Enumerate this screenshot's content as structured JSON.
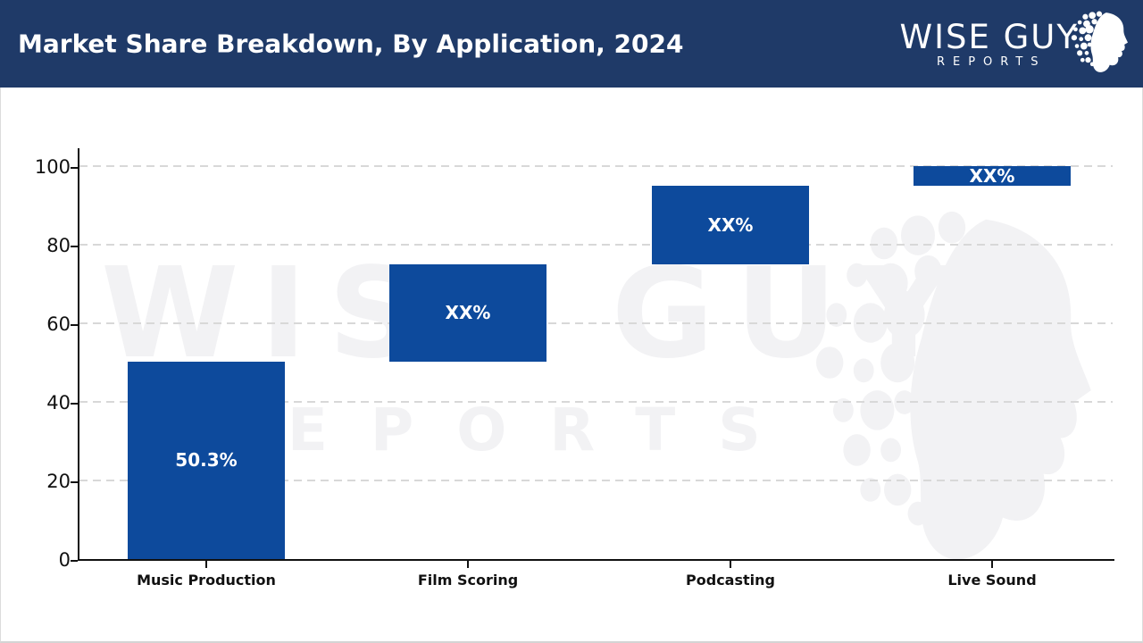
{
  "header": {
    "title": "Market Share Breakdown, By Application, 2024",
    "bg_color": "#1f3a68",
    "logo": {
      "line1": "WISE GUY",
      "line2": "REPORTS"
    }
  },
  "watermark": {
    "line1": "WISE GUY",
    "line2": "REPORTS"
  },
  "chart_data": {
    "type": "bar",
    "subtype": "waterfall",
    "title": "Market Share Breakdown, By Application, 2024",
    "categories": [
      "Music Production",
      "Film Scoring",
      "Podcasting",
      "Live Sound"
    ],
    "segments": [
      {
        "category": "Music Production",
        "start": 0,
        "end": 50.3,
        "label": "50.3%"
      },
      {
        "category": "Film Scoring",
        "start": 50.3,
        "end": 75,
        "label": "XX%"
      },
      {
        "category": "Podcasting",
        "start": 75,
        "end": 95,
        "label": "XX%"
      },
      {
        "category": "Live Sound",
        "start": 95,
        "end": 100,
        "label": "XX%"
      }
    ],
    "y_ticks": [
      0,
      20,
      40,
      60,
      80,
      100
    ],
    "ylim": [
      0,
      100
    ],
    "xlabel": "",
    "ylabel": "",
    "grid": "horizontal-dashed",
    "legend": "none",
    "bar_color": "#0d4a9c",
    "bar_label_color": "#ffffff",
    "axis_color": "#111111",
    "grid_color": "#d8d8d8"
  }
}
